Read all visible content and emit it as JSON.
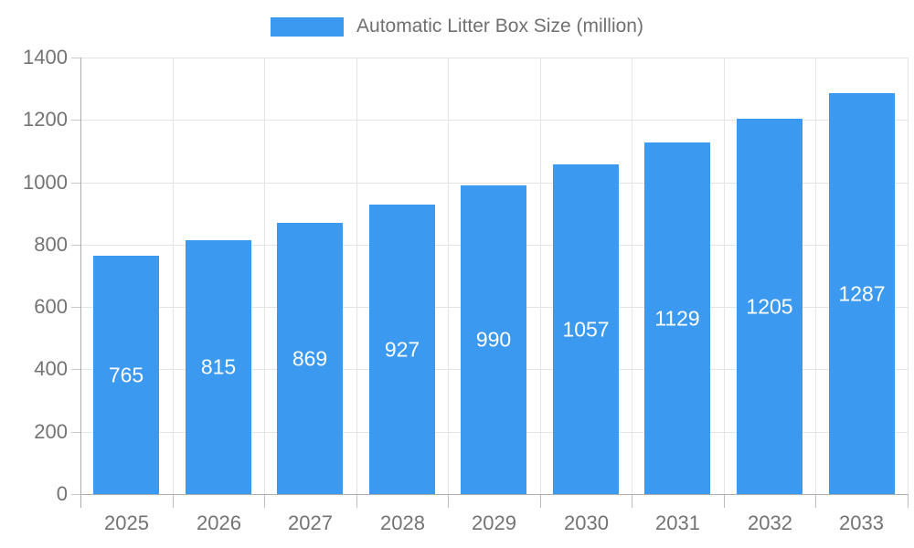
{
  "chart_data": {
    "type": "bar",
    "title": "",
    "legend": "Automatic Litter Box Size (million)",
    "legend_position": "top",
    "categories": [
      "2025",
      "2026",
      "2027",
      "2028",
      "2029",
      "2030",
      "2031",
      "2032",
      "2033"
    ],
    "series": [
      {
        "name": "Automatic Litter Box Size (million)",
        "values": [
          765,
          815,
          869,
          927,
          990,
          1057,
          1129,
          1205,
          1287
        ]
      }
    ],
    "bar_labels": [
      "765",
      "815",
      "869",
      "927",
      "990",
      "1057",
      "1129",
      "1205",
      "1287"
    ],
    "xlabel": "",
    "ylabel": "",
    "ylim": [
      0,
      1400
    ],
    "ytick_step": 200,
    "yticks": [
      "0",
      "200",
      "400",
      "600",
      "800",
      "1000",
      "1200",
      "1400"
    ],
    "grid": true
  },
  "colors": {
    "bar": "#3B99F0",
    "bar_label": "#FFFFFF",
    "gridline": "#E4E4E4",
    "axis": "#ADADAD",
    "tick_label": "#737373",
    "legend_text": "#707070",
    "background": "#FFFFFF"
  }
}
